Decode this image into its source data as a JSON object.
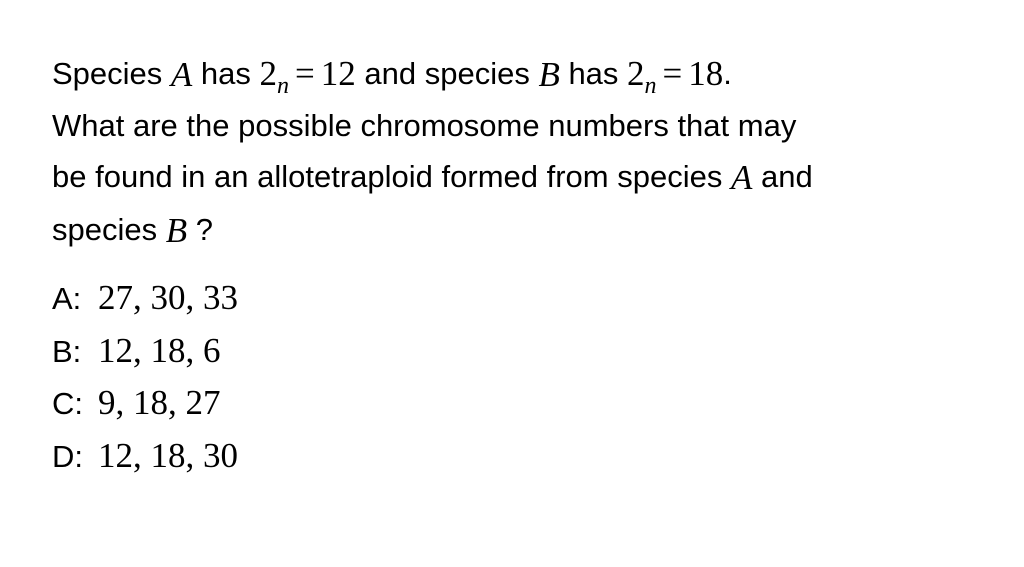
{
  "question": {
    "line1_pre": "Species ",
    "varA": "A",
    "has1": " has ",
    "two1": "2",
    "sub_n1": "n",
    "eq1": "=",
    "val1": "12",
    "and": " and species ",
    "varB": "B",
    "has2": " has ",
    "two2": "2",
    "sub_n2": "n",
    "eq2": "=",
    "val2": "18",
    "period": ".",
    "line2": "What are the possible chromosome numbers that may",
    "line3_pre": "be found in an allotetraploid formed from species ",
    "varA2": "A",
    "line3_post": " and",
    "line4_pre": "species ",
    "varB2": "B",
    "qmark": " ?"
  },
  "options": [
    {
      "label": "A:",
      "values": "27, 30, 33"
    },
    {
      "label": "B:",
      "values": "12, 18, 6"
    },
    {
      "label": "C:",
      "values": "9, 18, 27"
    },
    {
      "label": "D:",
      "values": "12, 18, 30"
    }
  ],
  "style": {
    "body_font_size": 31,
    "math_font_size": 35,
    "text_color": "#000000",
    "background_color": "#ffffff"
  }
}
